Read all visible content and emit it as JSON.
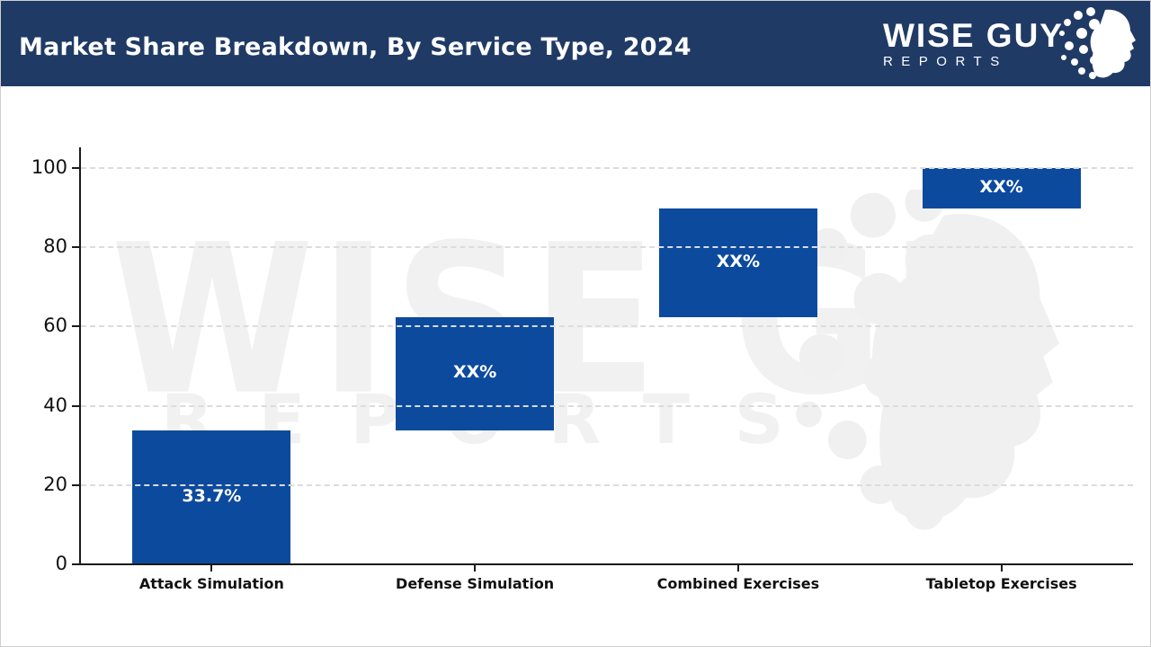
{
  "header": {
    "title": "Market Share Breakdown, By Service Type, 2024",
    "logo": {
      "line1": "WISE GUY",
      "line2": "REPORTS"
    }
  },
  "watermark": {
    "line1": "WISE GU",
    "line2": "REPORTS"
  },
  "chart_data": {
    "type": "waterfall",
    "title": "Market Share Breakdown, By Service Type, 2024",
    "categories": [
      "Attack Simulation",
      "Defense Simulation",
      "Combined Exercises",
      "Tabletop Exercises"
    ],
    "segments": [
      {
        "category": "Attack Simulation",
        "start": 0,
        "end": 33.7,
        "label": "33.7%"
      },
      {
        "category": "Defense Simulation",
        "start": 33.7,
        "end": 62.3,
        "label": "XX%"
      },
      {
        "category": "Combined Exercises",
        "start": 62.3,
        "end": 89.7,
        "label": "XX%"
      },
      {
        "category": "Tabletop Exercises",
        "start": 89.7,
        "end": 100,
        "label": "XX%"
      }
    ],
    "yticks": [
      0,
      20,
      40,
      60,
      80,
      100
    ],
    "ylim": [
      0,
      105
    ],
    "grid": "horizontal-dashed",
    "legend": "none",
    "bar_color": "#0c4a9e",
    "bar_label_color": "#ffffff",
    "axis_color": "#1a1a1a",
    "gridline_color": "#dcdcdc",
    "header_color": "#203a66"
  }
}
